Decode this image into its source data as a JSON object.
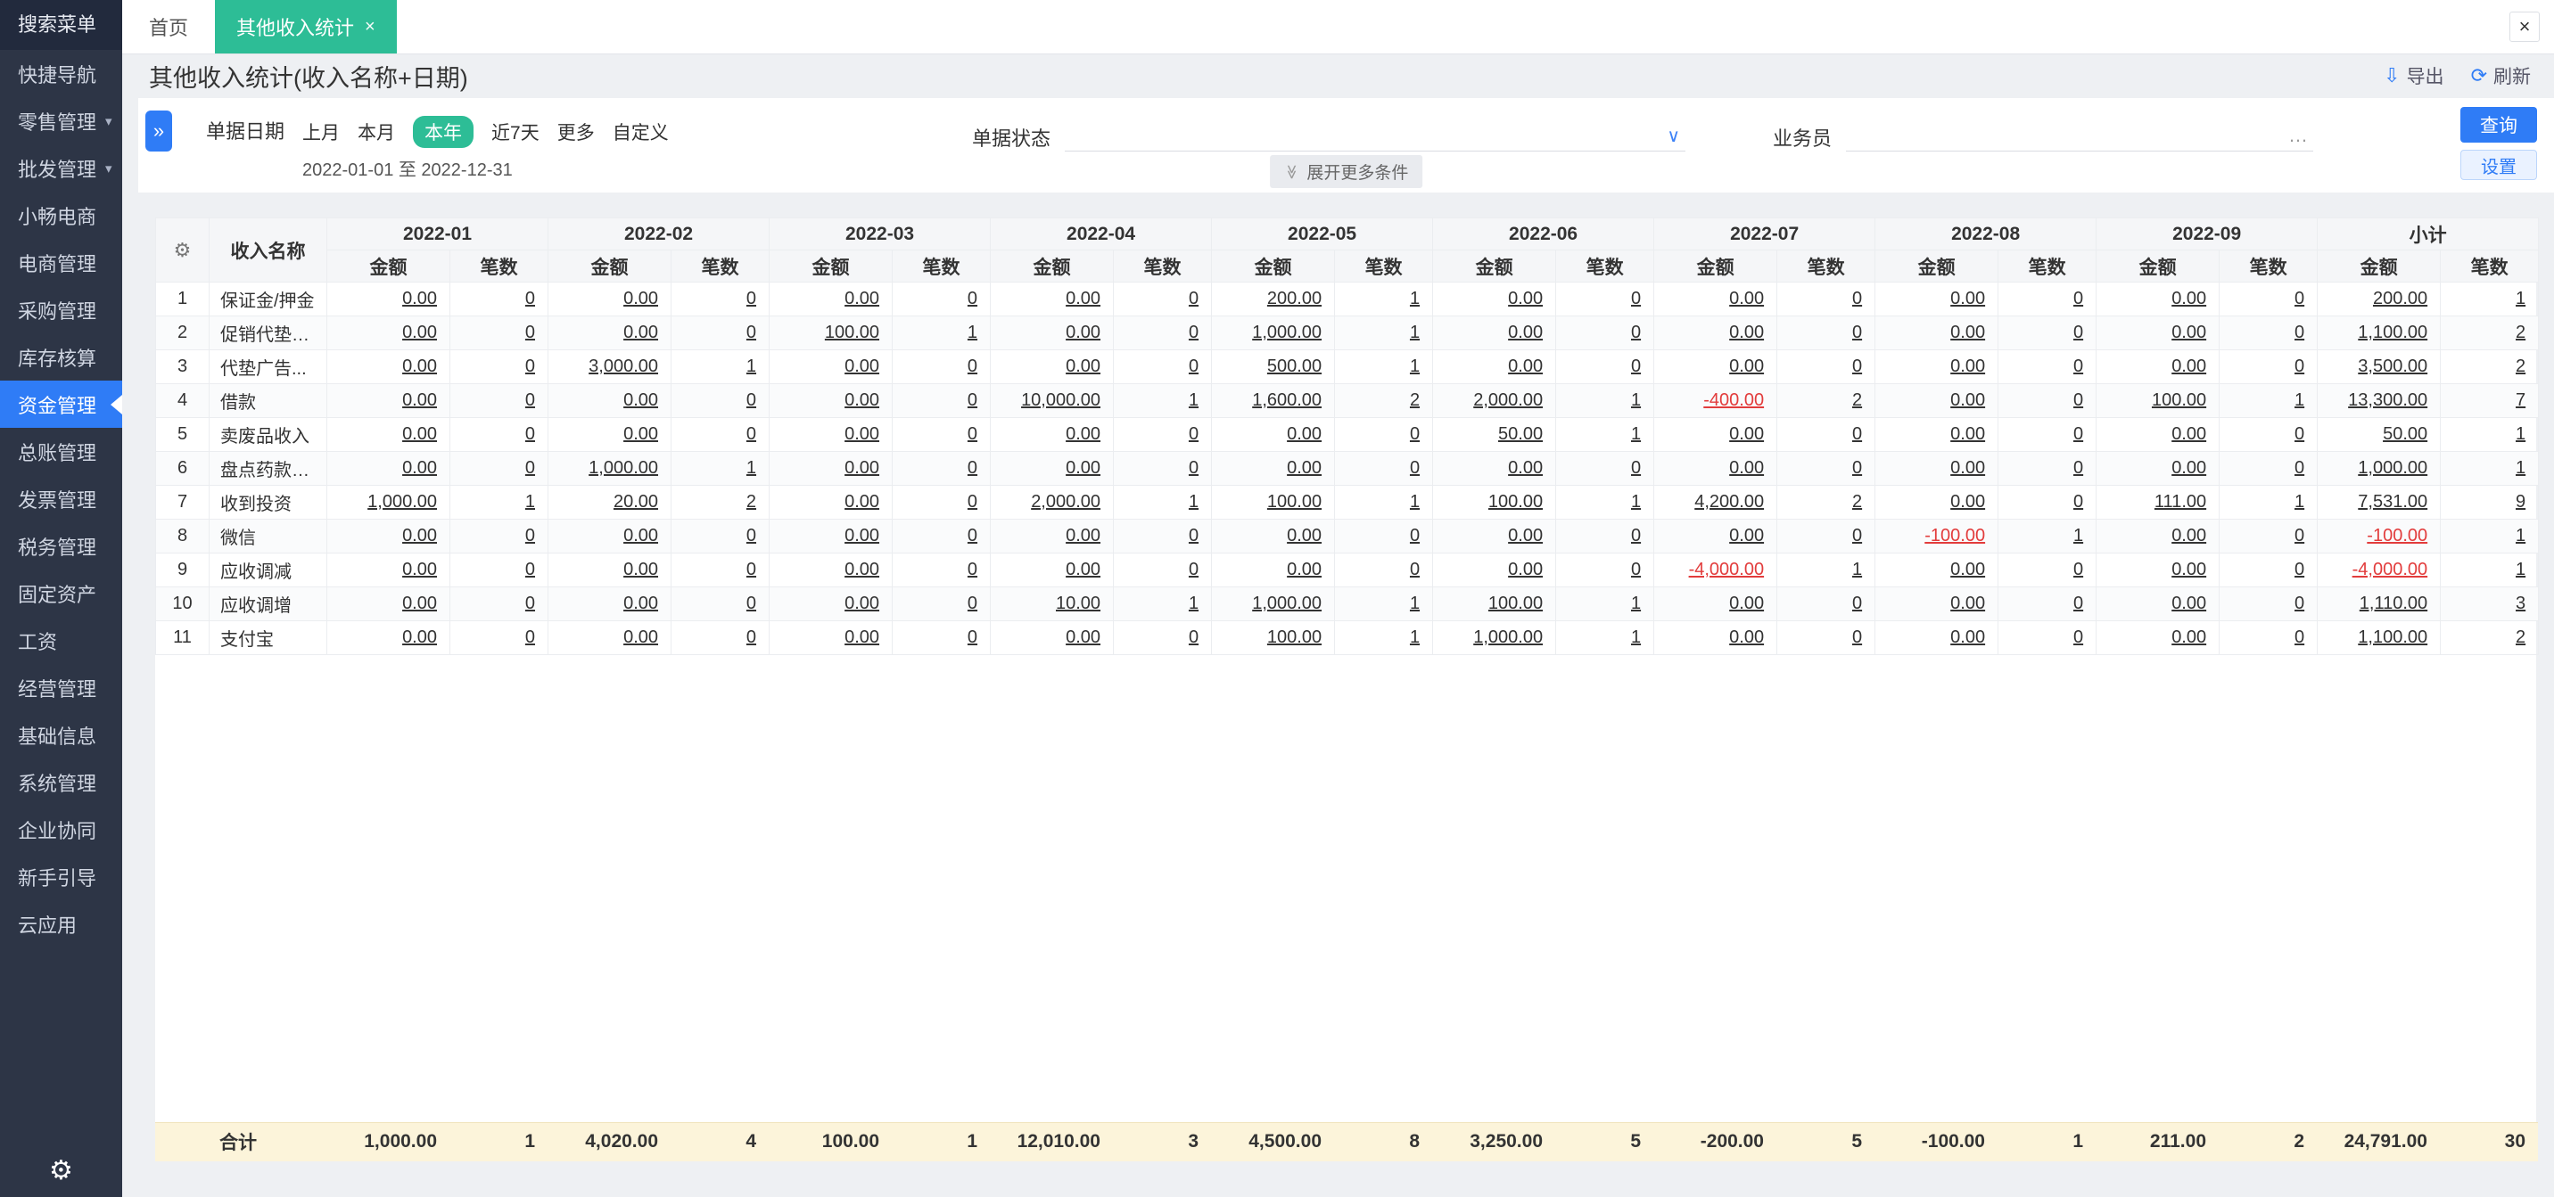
{
  "icons": {
    "close": "×",
    "collapse": "»",
    "expand_arrows": "≫",
    "select_chevron": "∨",
    "ellipsis": "…",
    "export": "⇩",
    "refresh": "⟳",
    "gear": "⚙",
    "menu_arrow": "▾"
  },
  "colors": {
    "sidebar_bg": "#2d3546",
    "active_blue": "#2f7cf6",
    "tab_green": "#2dbd96",
    "total_row_bg": "#fcf4da",
    "negative_red": "#e23c3c"
  },
  "sidebar": {
    "search_label": "搜索菜单",
    "items": [
      {
        "label": "快捷导航"
      },
      {
        "label": "零售管理",
        "arrow": true
      },
      {
        "label": "批发管理",
        "arrow": true
      },
      {
        "label": "小畅电商"
      },
      {
        "label": "电商管理"
      },
      {
        "label": "采购管理"
      },
      {
        "label": "库存核算"
      },
      {
        "label": "资金管理",
        "active": true
      },
      {
        "label": "总账管理"
      },
      {
        "label": "发票管理"
      },
      {
        "label": "税务管理"
      },
      {
        "label": "固定资产"
      },
      {
        "label": "工资"
      },
      {
        "label": "经营管理"
      },
      {
        "label": "基础信息"
      },
      {
        "label": "系统管理"
      },
      {
        "label": "企业协同"
      },
      {
        "label": "新手引导"
      },
      {
        "label": "云应用"
      }
    ]
  },
  "tabs": {
    "home": "首页",
    "active": "其他收入统计"
  },
  "page": {
    "title": "其他收入统计(收入名称+日期)",
    "export_label": "导出",
    "refresh_label": "刷新"
  },
  "filters": {
    "date_label": "单据日期",
    "quick_options": [
      "上月",
      "本月",
      "本年",
      "近7天",
      "更多",
      "自定义"
    ],
    "active_quick": "本年",
    "date_range": "2022-01-01 至 2022-12-31",
    "status_label": "单据状态",
    "salesman_label": "业务员",
    "query": "查询",
    "settings": "设置",
    "expand_more": "展开更多条件"
  },
  "table": {
    "name_header": "收入名称",
    "sub_headers": [
      "金额",
      "笔数"
    ],
    "months": [
      "2022-01",
      "2022-02",
      "2022-03",
      "2022-04",
      "2022-05",
      "2022-06",
      "2022-07",
      "2022-08",
      "2022-09",
      "小计"
    ],
    "rows": [
      {
        "index": "1",
        "name": "保证金/押金",
        "cells": [
          [
            "0.00",
            "0"
          ],
          [
            "0.00",
            "0"
          ],
          [
            "0.00",
            "0"
          ],
          [
            "0.00",
            "0"
          ],
          [
            "200.00",
            "1"
          ],
          [
            "0.00",
            "0"
          ],
          [
            "0.00",
            "0"
          ],
          [
            "0.00",
            "0"
          ],
          [
            "0.00",
            "0"
          ],
          [
            "200.00",
            "1"
          ]
        ]
      },
      {
        "index": "2",
        "name": "促销代垫费用",
        "cells": [
          [
            "0.00",
            "0"
          ],
          [
            "0.00",
            "0"
          ],
          [
            "100.00",
            "1"
          ],
          [
            "0.00",
            "0"
          ],
          [
            "1,000.00",
            "1"
          ],
          [
            "0.00",
            "0"
          ],
          [
            "0.00",
            "0"
          ],
          [
            "0.00",
            "0"
          ],
          [
            "0.00",
            "0"
          ],
          [
            "1,100.00",
            "2"
          ]
        ]
      },
      {
        "index": "3",
        "name": "代垫广告...",
        "cells": [
          [
            "0.00",
            "0"
          ],
          [
            "3,000.00",
            "1"
          ],
          [
            "0.00",
            "0"
          ],
          [
            "0.00",
            "0"
          ],
          [
            "500.00",
            "1"
          ],
          [
            "0.00",
            "0"
          ],
          [
            "0.00",
            "0"
          ],
          [
            "0.00",
            "0"
          ],
          [
            "0.00",
            "0"
          ],
          [
            "3,500.00",
            "2"
          ]
        ]
      },
      {
        "index": "4",
        "name": "借款",
        "cells": [
          [
            "0.00",
            "0"
          ],
          [
            "0.00",
            "0"
          ],
          [
            "0.00",
            "0"
          ],
          [
            "10,000.00",
            "1"
          ],
          [
            "1,600.00",
            "2"
          ],
          [
            "2,000.00",
            "1"
          ],
          [
            "-400.00",
            "2"
          ],
          [
            "0.00",
            "0"
          ],
          [
            "100.00",
            "1"
          ],
          [
            "13,300.00",
            "7"
          ]
        ]
      },
      {
        "index": "5",
        "name": "卖废品收入",
        "cells": [
          [
            "0.00",
            "0"
          ],
          [
            "0.00",
            "0"
          ],
          [
            "0.00",
            "0"
          ],
          [
            "0.00",
            "0"
          ],
          [
            "0.00",
            "0"
          ],
          [
            "50.00",
            "1"
          ],
          [
            "0.00",
            "0"
          ],
          [
            "0.00",
            "0"
          ],
          [
            "0.00",
            "0"
          ],
          [
            "50.00",
            "1"
          ]
        ]
      },
      {
        "index": "6",
        "name": "盘点药款收入",
        "cells": [
          [
            "0.00",
            "0"
          ],
          [
            "1,000.00",
            "1"
          ],
          [
            "0.00",
            "0"
          ],
          [
            "0.00",
            "0"
          ],
          [
            "0.00",
            "0"
          ],
          [
            "0.00",
            "0"
          ],
          [
            "0.00",
            "0"
          ],
          [
            "0.00",
            "0"
          ],
          [
            "0.00",
            "0"
          ],
          [
            "1,000.00",
            "1"
          ]
        ]
      },
      {
        "index": "7",
        "name": "收到投资",
        "cells": [
          [
            "1,000.00",
            "1"
          ],
          [
            "20.00",
            "2"
          ],
          [
            "0.00",
            "0"
          ],
          [
            "2,000.00",
            "1"
          ],
          [
            "100.00",
            "1"
          ],
          [
            "100.00",
            "1"
          ],
          [
            "4,200.00",
            "2"
          ],
          [
            "0.00",
            "0"
          ],
          [
            "111.00",
            "1"
          ],
          [
            "7,531.00",
            "9"
          ]
        ]
      },
      {
        "index": "8",
        "name": "微信",
        "cells": [
          [
            "0.00",
            "0"
          ],
          [
            "0.00",
            "0"
          ],
          [
            "0.00",
            "0"
          ],
          [
            "0.00",
            "0"
          ],
          [
            "0.00",
            "0"
          ],
          [
            "0.00",
            "0"
          ],
          [
            "0.00",
            "0"
          ],
          [
            "-100.00",
            "1"
          ],
          [
            "0.00",
            "0"
          ],
          [
            "-100.00",
            "1"
          ]
        ]
      },
      {
        "index": "9",
        "name": "应收调减",
        "cells": [
          [
            "0.00",
            "0"
          ],
          [
            "0.00",
            "0"
          ],
          [
            "0.00",
            "0"
          ],
          [
            "0.00",
            "0"
          ],
          [
            "0.00",
            "0"
          ],
          [
            "0.00",
            "0"
          ],
          [
            "-4,000.00",
            "1"
          ],
          [
            "0.00",
            "0"
          ],
          [
            "0.00",
            "0"
          ],
          [
            "-4,000.00",
            "1"
          ]
        ]
      },
      {
        "index": "10",
        "name": "应收调增",
        "cells": [
          [
            "0.00",
            "0"
          ],
          [
            "0.00",
            "0"
          ],
          [
            "0.00",
            "0"
          ],
          [
            "10.00",
            "1"
          ],
          [
            "1,000.00",
            "1"
          ],
          [
            "100.00",
            "1"
          ],
          [
            "0.00",
            "0"
          ],
          [
            "0.00",
            "0"
          ],
          [
            "0.00",
            "0"
          ],
          [
            "1,110.00",
            "3"
          ]
        ]
      },
      {
        "index": "11",
        "name": "支付宝",
        "cells": [
          [
            "0.00",
            "0"
          ],
          [
            "0.00",
            "0"
          ],
          [
            "0.00",
            "0"
          ],
          [
            "0.00",
            "0"
          ],
          [
            "100.00",
            "1"
          ],
          [
            "1,000.00",
            "1"
          ],
          [
            "0.00",
            "0"
          ],
          [
            "0.00",
            "0"
          ],
          [
            "0.00",
            "0"
          ],
          [
            "1,100.00",
            "2"
          ]
        ]
      }
    ],
    "total_label": "合计",
    "totals": [
      [
        "1,000.00",
        "1"
      ],
      [
        "4,020.00",
        "4"
      ],
      [
        "100.00",
        "1"
      ],
      [
        "12,010.00",
        "3"
      ],
      [
        "4,500.00",
        "8"
      ],
      [
        "3,250.00",
        "5"
      ],
      [
        "-200.00",
        "5"
      ],
      [
        "-100.00",
        "1"
      ],
      [
        "211.00",
        "2"
      ],
      [
        "24,791.00",
        "30"
      ]
    ]
  }
}
